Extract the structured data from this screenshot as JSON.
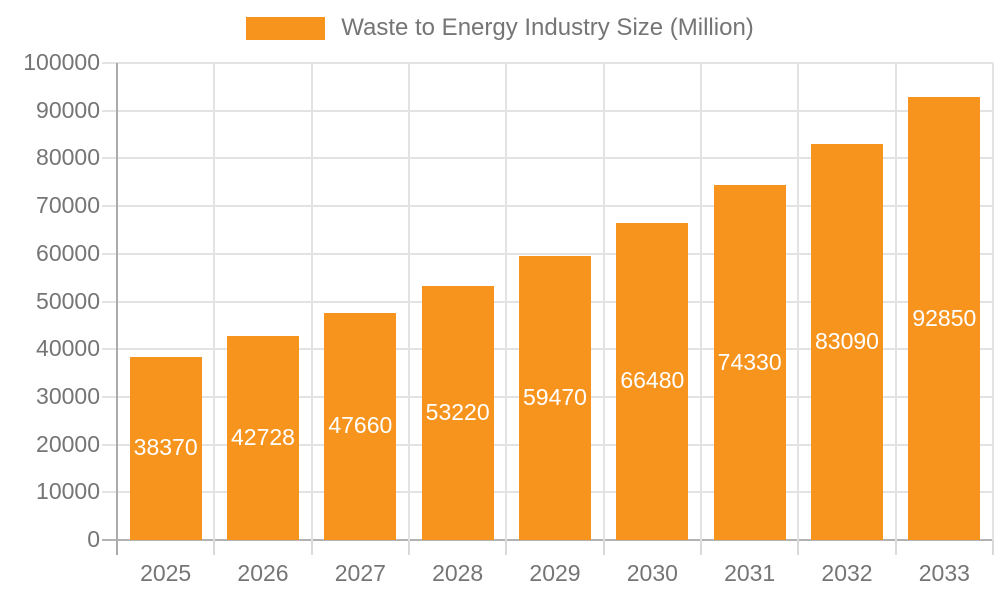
{
  "legend": {
    "label": "Waste to Energy Industry Size (Million)"
  },
  "chart_data": {
    "type": "bar",
    "title": "Waste to Energy Industry Size (Million)",
    "categories": [
      "2025",
      "2026",
      "2027",
      "2028",
      "2029",
      "2030",
      "2031",
      "2032",
      "2033"
    ],
    "values": [
      38370,
      42728,
      47660,
      53220,
      59470,
      66480,
      74330,
      83090,
      92850
    ],
    "bar_labels": [
      "38370",
      "42728",
      "47660",
      "53220",
      "59470",
      "66480",
      "74330",
      "83090",
      "92850"
    ],
    "xlabel": "",
    "ylabel": "",
    "ylim": [
      0,
      100000
    ],
    "ytick_step": 10000,
    "ytick_labels": [
      "0",
      "10000",
      "20000",
      "30000",
      "40000",
      "50000",
      "60000",
      "70000",
      "80000",
      "90000",
      "100000"
    ],
    "grid": true,
    "legend_position": "top",
    "colors": {
      "bar": "#f7941e",
      "bar_label_text": "#ffffff",
      "axis_text": "#757575",
      "gridline": "#e3e3e3",
      "axis_line": "#ababab",
      "baseline": "#b3b3b3",
      "below_axis_tick": "#d9d9d9"
    }
  }
}
